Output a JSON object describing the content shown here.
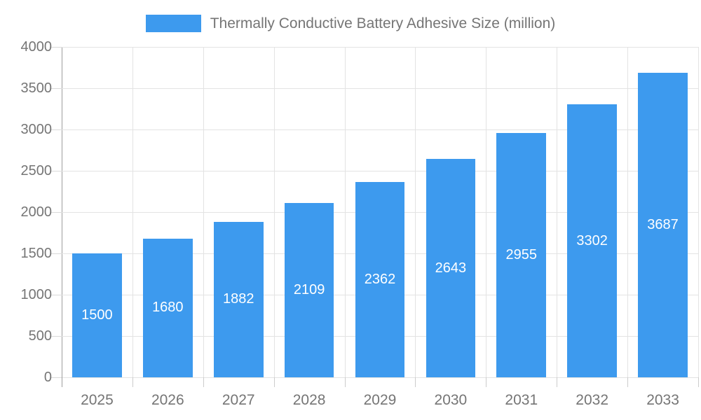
{
  "chart_data": {
    "type": "bar",
    "title": "Thermally Conductive Battery Adhesive Size (million)",
    "categories": [
      "2025",
      "2026",
      "2027",
      "2028",
      "2029",
      "2030",
      "2031",
      "2032",
      "2033"
    ],
    "values": [
      1500,
      1680,
      1882,
      2109,
      2362,
      2643,
      2955,
      3302,
      3687
    ],
    "value_labels": [
      "1500",
      "1680",
      "1882",
      "2109",
      "2362",
      "2643",
      "2955",
      "3302",
      "3687"
    ],
    "xlabel": "",
    "ylabel": "",
    "ylim": [
      0,
      4000
    ],
    "ytick_step": 500,
    "ytick_labels": [
      "0",
      "500",
      "1000",
      "1500",
      "2000",
      "2500",
      "3000",
      "3500",
      "4000"
    ],
    "grid": true,
    "legend_position": "top",
    "colors": {
      "bar": "#3d9aee",
      "value_label": "#ffffff",
      "axis_text": "#757575",
      "gridline": "#e3e3e3",
      "y_axis_line": "#9e9e9e",
      "x_axis_line": "#cccccc"
    }
  }
}
